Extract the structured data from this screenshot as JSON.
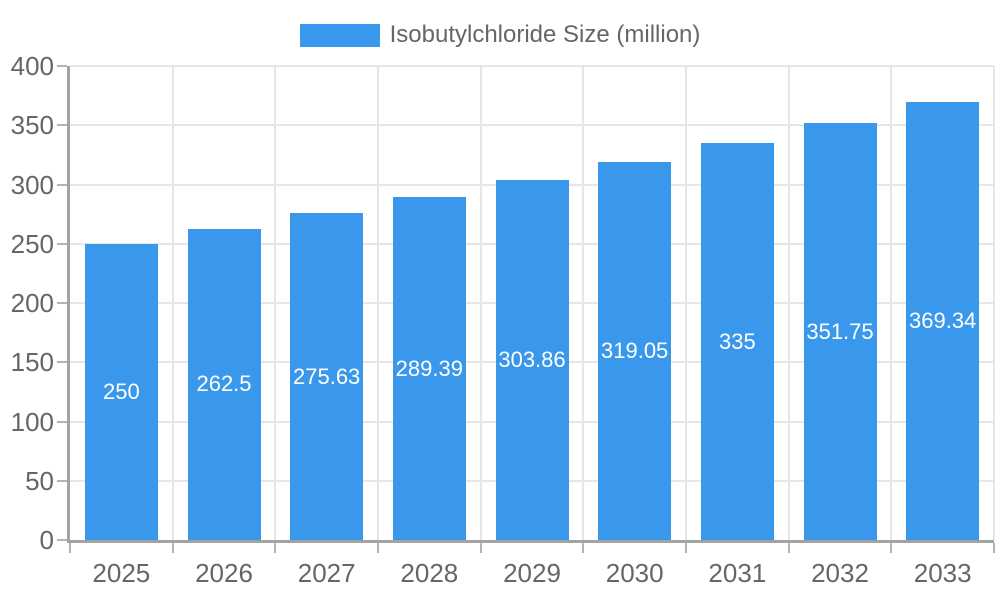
{
  "chart_data": {
    "type": "bar",
    "legend": "Isobutylchloride Size (million)",
    "categories": [
      "2025",
      "2026",
      "2027",
      "2028",
      "2029",
      "2030",
      "2031",
      "2032",
      "2033"
    ],
    "values": [
      250,
      262.5,
      275.63,
      289.39,
      303.86,
      319.05,
      335,
      351.75,
      369.34
    ],
    "value_labels": [
      "250",
      "262.5",
      "275.63",
      "289.39",
      "303.86",
      "319.05",
      "335",
      "351.75",
      "369.34"
    ],
    "yticks": [
      0,
      50,
      100,
      150,
      200,
      250,
      300,
      350,
      400
    ],
    "ylim": [
      0,
      400
    ],
    "grid": true,
    "legend_position": "top-center",
    "colors": {
      "bar": "#3a98ec",
      "bar_label_text": "#ffffff",
      "axis_text": "#666666",
      "legend_text": "#666666",
      "gridline": "#e6e6e6",
      "axis_line": "#a3a3a3",
      "tick": "#b3b3b3",
      "background": "#ffffff"
    }
  }
}
